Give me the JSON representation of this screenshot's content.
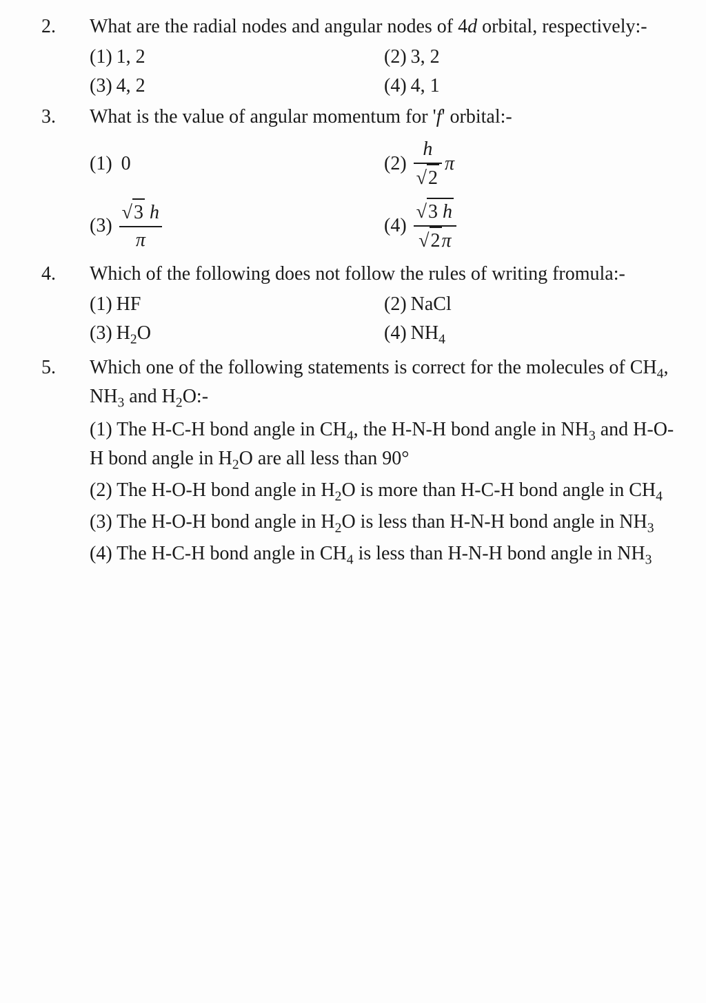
{
  "questions": [
    {
      "number": "2.",
      "stem_parts": [
        "What are the radial nodes and angular nodes of 4",
        "d",
        " orbital, respectively:-"
      ],
      "options": [
        {
          "label": "(1)",
          "text": "1, 2"
        },
        {
          "label": "(2)",
          "text": "3, 2"
        },
        {
          "label": "(3)",
          "text": "4, 2"
        },
        {
          "label": "(4)",
          "text": "4, 1"
        }
      ]
    },
    {
      "number": "3.",
      "stem_parts": [
        "What is the value of angular momentum for '",
        "f",
        "' orbital:-"
      ],
      "options": [
        {
          "label": "(1)",
          "text": "0"
        },
        {
          "label": "(2)",
          "frac": {
            "num_pre": "",
            "num_ital": "h",
            "den_sqrt": "2"
          },
          "trail_ital": "π"
        },
        {
          "label": "(3)",
          "frac": {
            "num_sqrt": "3",
            "num_after_ital": "h",
            "den_ital": "π"
          }
        },
        {
          "label": "(4)",
          "frac": {
            "num_sqrt2": "3",
            "num_after_ital2": "h",
            "den_sqrt": "2",
            "den_after_ital": "π"
          }
        }
      ]
    },
    {
      "number": "4.",
      "stem": "Which of the following does not follow the rules of writing fromula:-",
      "options": [
        {
          "label": "(1)",
          "text": "HF"
        },
        {
          "label": "(2)",
          "text": "NaCl"
        },
        {
          "label": "(3)",
          "chem": "H",
          "sub1": "2",
          "after1": "O"
        },
        {
          "label": "(4)",
          "chem": "NH",
          "sub1": "4"
        }
      ]
    },
    {
      "number": "5.",
      "stem_rich": true,
      "stem_a": "Which one of the following statements is correct for the molecules of CH",
      "stem_b": "4",
      "stem_c": ", NH",
      "stem_d": "3",
      "stem_e": " and H",
      "stem_f": "2",
      "stem_g": "O:-",
      "long_options": [
        {
          "label": "(1)",
          "a": "The H-C-H bond angle in CH",
          "b": "4",
          "c": ", the H-N-H bond angle in NH",
          "d": "3",
          "e": " and H-O-H bond angle in H",
          "f": "2",
          "g": "O are all less than 90°"
        },
        {
          "label": "(2)",
          "a": "The H-O-H bond angle in H",
          "b": "2",
          "c": "O is more than H-C-H bond angle in CH",
          "d": "4",
          "e": "",
          "f": "",
          "g": ""
        },
        {
          "label": "(3)",
          "a": "The H-O-H bond angle in H",
          "b": "2",
          "c": "O is less than H-N-H bond angle in NH",
          "d": "3",
          "e": "",
          "f": "",
          "g": ""
        },
        {
          "label": "(4)",
          "a": "The H-C-H bond angle in CH",
          "b": "4",
          "c": " is less than H-N-H bond angle in NH",
          "d": "3",
          "e": "",
          "f": "",
          "g": ""
        }
      ]
    }
  ]
}
